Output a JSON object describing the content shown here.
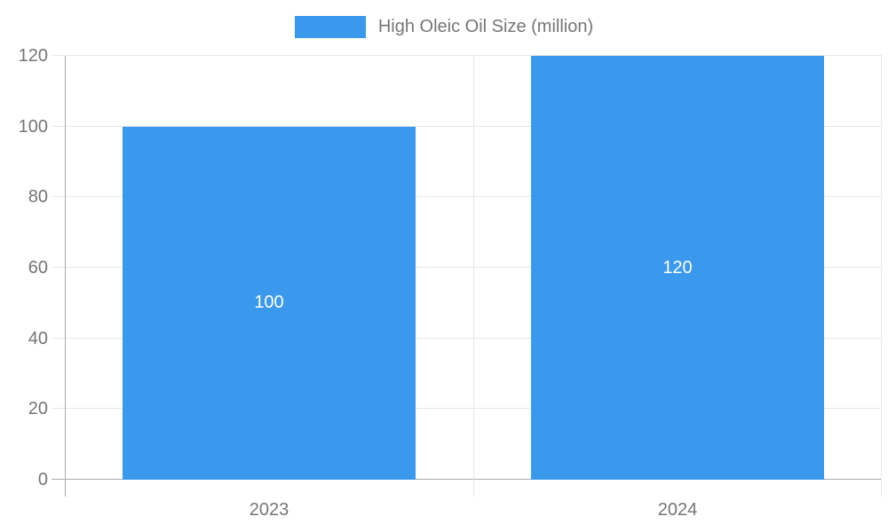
{
  "legend": {
    "label": "High Oleic Oil Size (million)"
  },
  "colors": {
    "bar": "#3A99EC",
    "bar_label_text": "#FFFFFF",
    "grid_light": "#E8E8E8",
    "axis_line": "#ABABAB",
    "tick_text": "#757575",
    "background": "#FFFFFF"
  },
  "chart_data": {
    "type": "bar",
    "title": "High Oleic Oil Size (million)",
    "categories": [
      "2023",
      "2024"
    ],
    "series": [
      {
        "name": "High Oleic Oil Size (million)",
        "values": [
          100,
          120
        ]
      }
    ],
    "bar_labels": [
      "100",
      "120"
    ],
    "xlabel": "",
    "ylabel": "",
    "ylim": [
      0,
      120
    ],
    "yticks": [
      0,
      20,
      40,
      60,
      80,
      100,
      120
    ],
    "grid": true,
    "legend_position": "top-center",
    "bar_width_ratio": 0.717,
    "value_label_position": "center-inside"
  }
}
